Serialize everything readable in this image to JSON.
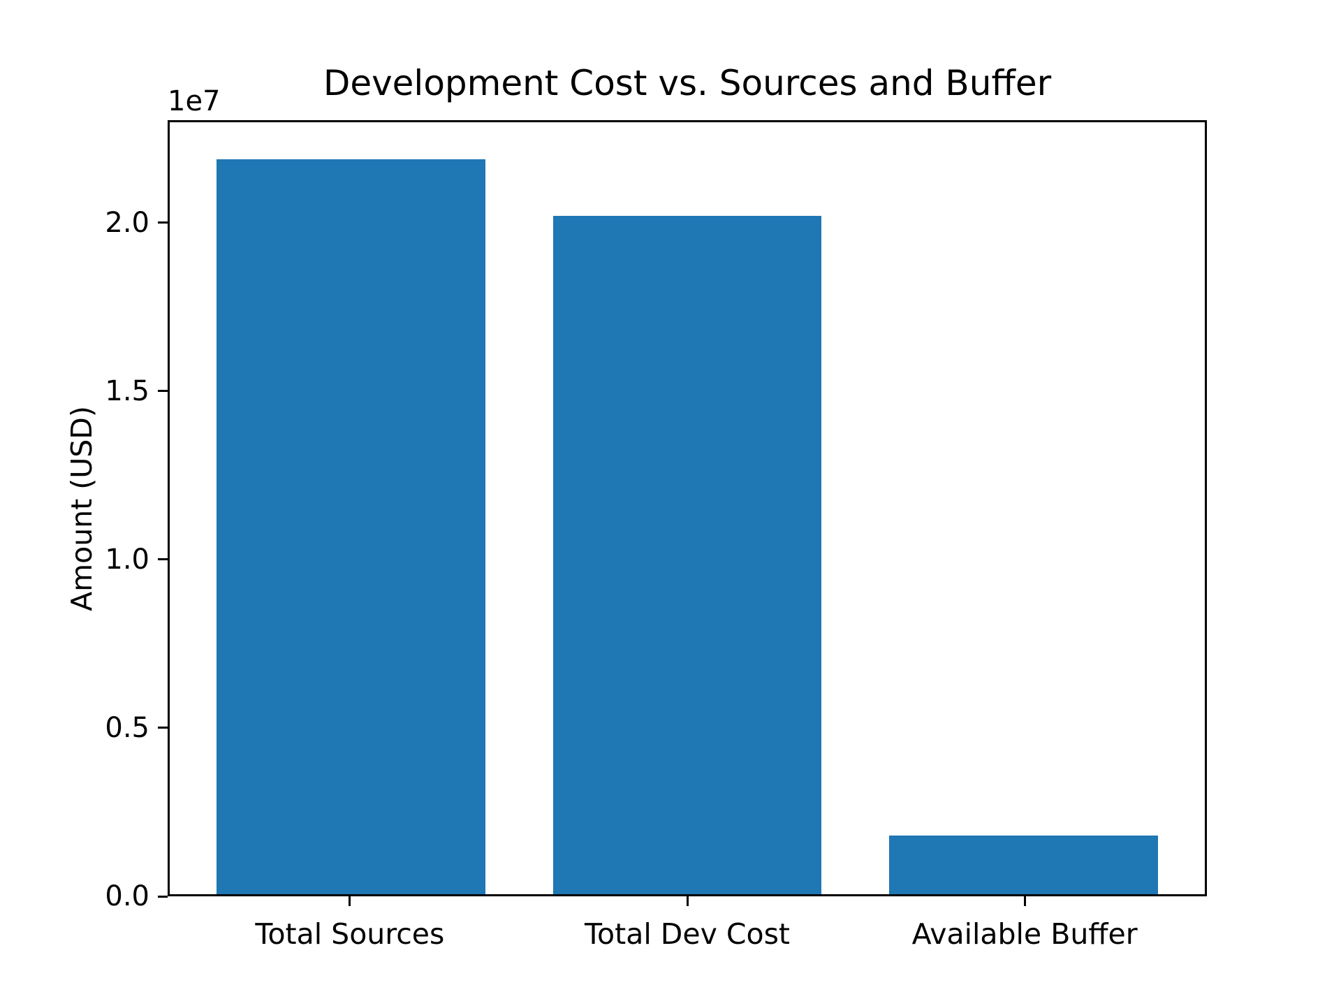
{
  "figure": {
    "background": "#ffffff"
  },
  "chart_data": {
    "type": "bar",
    "title": "Development Cost vs. Sources and Buffer",
    "xlabel": "",
    "ylabel": "Amount (USD)",
    "offset_text": "1e7",
    "categories": [
      "Total Sources",
      "Total Dev Cost",
      "Available Buffer"
    ],
    "x": [
      0,
      1,
      2
    ],
    "values": [
      21950000,
      20250000,
      1750000
    ],
    "bar_width": 0.8,
    "bar_color": "#1f77b4",
    "xlim": [
      -0.54,
      2.54
    ],
    "ylim": [
      0,
      23047500
    ],
    "yticks": [
      0,
      5000000,
      10000000,
      15000000,
      20000000
    ],
    "ytick_labels": [
      "0.0",
      "0.5",
      "1.0",
      "1.5",
      "2.0"
    ],
    "grid": false,
    "legend": "none",
    "text_color": "#000000",
    "spine_color": "#000000"
  }
}
